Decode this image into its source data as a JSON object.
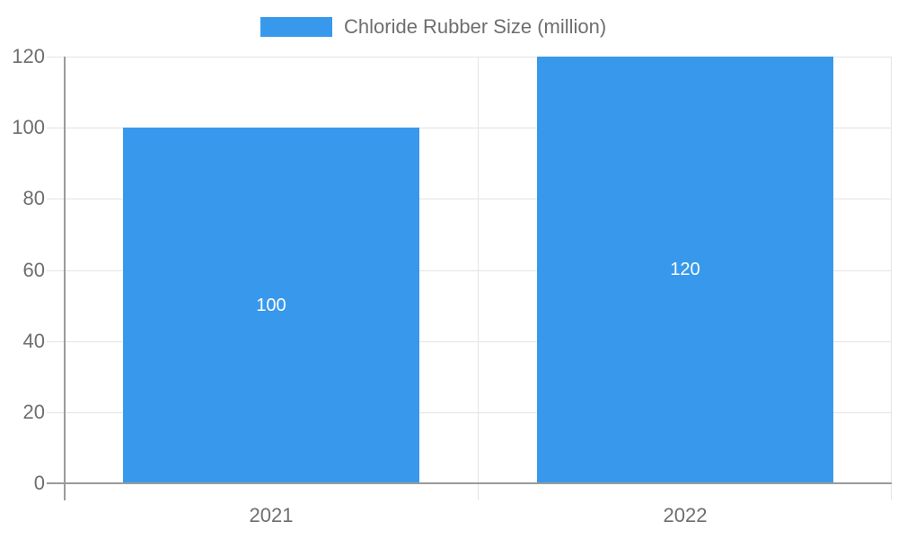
{
  "chart_data": {
    "type": "bar",
    "title": "",
    "categories": [
      "2021",
      "2022"
    ],
    "series": [
      {
        "name": "Chloride Rubber Size (million)",
        "values": [
          100,
          120
        ]
      }
    ],
    "data_labels": [
      "100",
      "120"
    ],
    "ylim": [
      0,
      120
    ],
    "yticks": [
      0,
      20,
      40,
      60,
      80,
      100,
      120
    ],
    "grid": true,
    "legend_position": "top-center",
    "colors": {
      "bar": "#3899EC",
      "axis_line": "#9A9A9A",
      "grid_line": "#E4E4E4",
      "tick_label": "#6E6E6E",
      "data_label": "#FFFFFF",
      "background": "#FFFFFF"
    }
  }
}
